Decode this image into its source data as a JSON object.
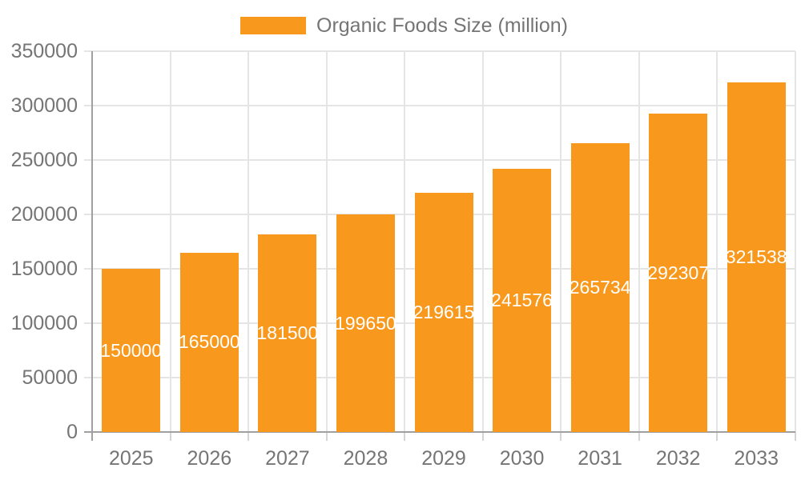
{
  "legend": {
    "label": "Organic Foods Size (million)"
  },
  "colors": {
    "bar": "#F8981D",
    "axis_label": "#757575",
    "grid": "#e5e5e5",
    "tick": "#d5d5d5",
    "axis_line": "#a0a0a0",
    "bar_label": "#ffffff",
    "background": "#ffffff"
  },
  "chart_data": {
    "type": "bar",
    "title": "",
    "legend_label": "Organic Foods Size (million)",
    "legend_position": "top-center",
    "categories": [
      "2025",
      "2026",
      "2027",
      "2028",
      "2029",
      "2030",
      "2031",
      "2032",
      "2033"
    ],
    "values": [
      150000,
      165000,
      181500,
      199650,
      219615,
      241576,
      265734,
      292307,
      321538
    ],
    "bar_labels": [
      "150000",
      "165000",
      "181500",
      "199650",
      "219615",
      "241576",
      "265734",
      "292307",
      "321538"
    ],
    "xlabel": "",
    "ylabel": "",
    "ylim": [
      0,
      350000
    ],
    "ytick_interval": 50000,
    "ytick_labels": [
      "0",
      "50000",
      "100000",
      "150000",
      "200000",
      "250000",
      "300000",
      "350000"
    ],
    "grid": true
  }
}
